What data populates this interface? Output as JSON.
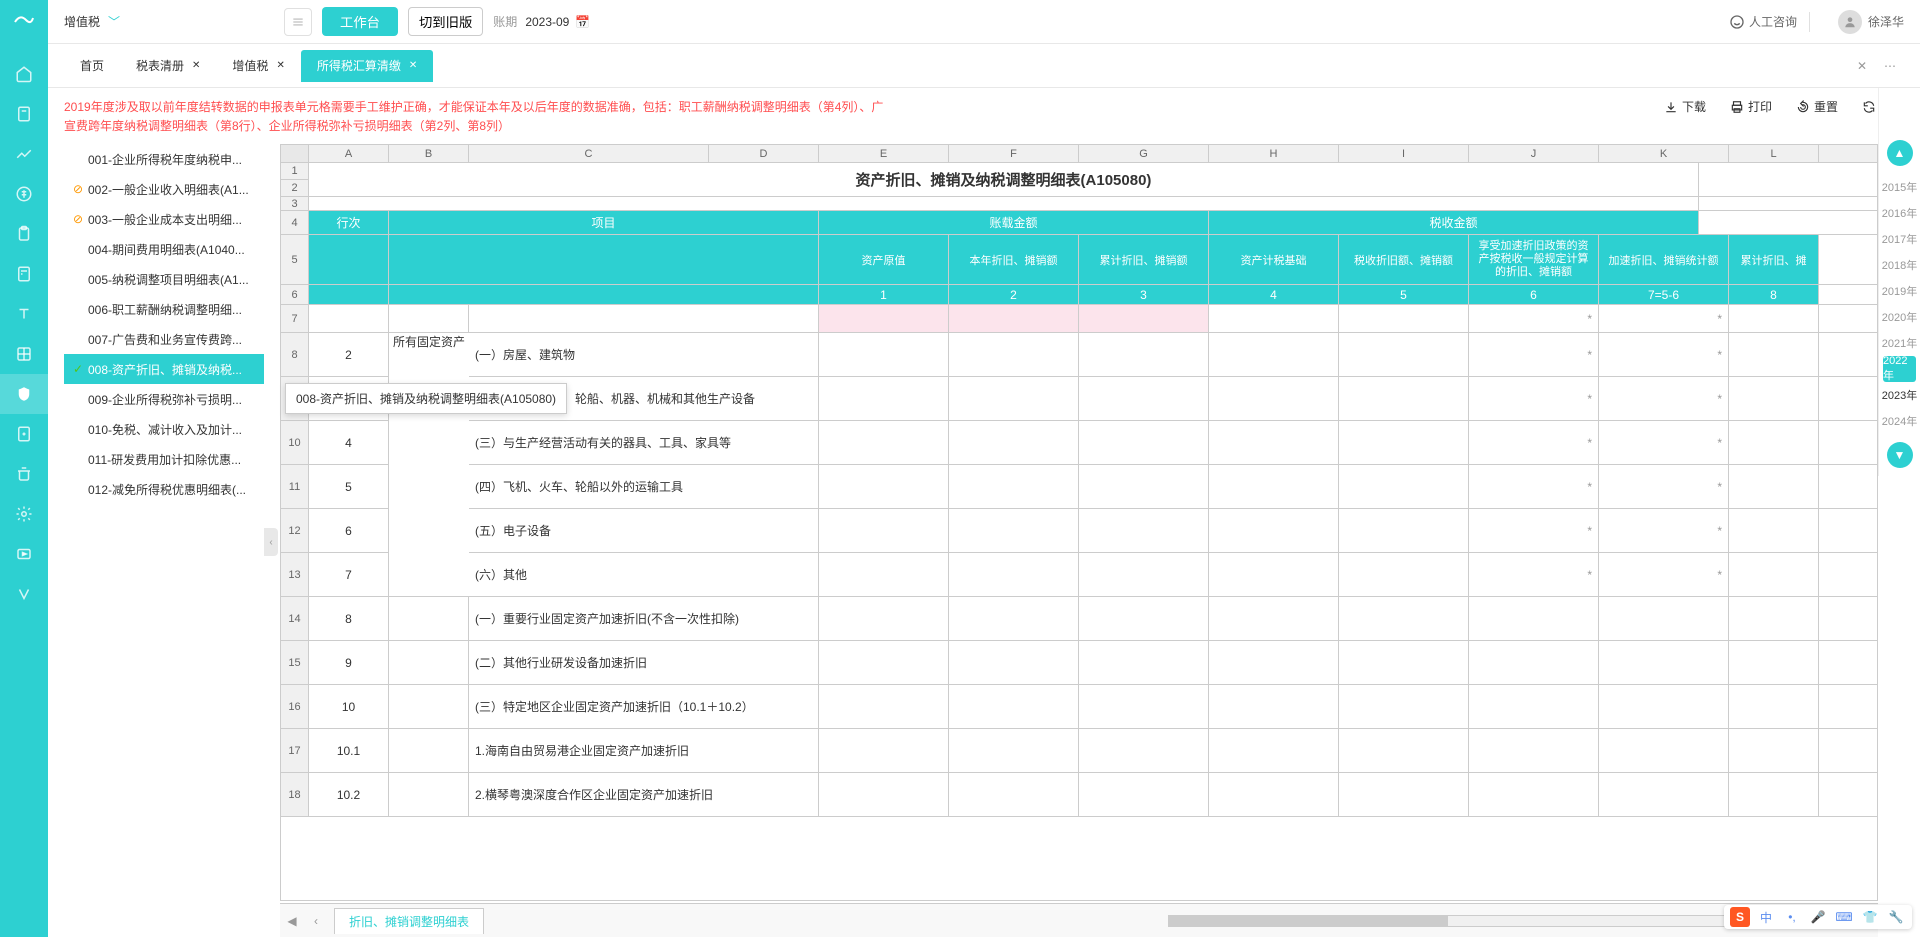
{
  "header": {
    "dropdown_label": "增值税",
    "workspace_btn": "工作台",
    "switch_old_btn": "切到旧版",
    "period_label": "账期",
    "period_value": "2023-09",
    "support_label": "人工咨询",
    "user_name": "徐泽华"
  },
  "tabs": {
    "items": [
      {
        "label": "首页",
        "closable": false,
        "active": false
      },
      {
        "label": "税表清册",
        "closable": true,
        "active": false
      },
      {
        "label": "增值税",
        "closable": true,
        "active": false
      },
      {
        "label": "所得税汇算清缴",
        "closable": true,
        "active": true
      }
    ]
  },
  "notice": "2019年度涉及取以前年度结转数据的申报表单元格需要手工维护正确，才能保证本年及以后年度的数据准确，包括：职工薪酬纳税调整明细表（第4列）、广宣费跨年度纳税调整明细表（第8行）、企业所得税弥补亏损明细表（第2列、第8列）",
  "toolbar": {
    "download": "下载",
    "print": "打印",
    "reset": "重置",
    "refresh": "刷新"
  },
  "form_list": [
    {
      "label": "001-企业所得税年度纳税申...",
      "status": ""
    },
    {
      "label": "002-一般企业收入明细表(A1...",
      "status": "warn"
    },
    {
      "label": "003-一般企业成本支出明细...",
      "status": "warn"
    },
    {
      "label": "004-期间费用明细表(A1040...",
      "status": ""
    },
    {
      "label": "005-纳税调整项目明细表(A1...",
      "status": ""
    },
    {
      "label": "006-职工薪酬纳税调整明细...",
      "status": ""
    },
    {
      "label": "007-广告费和业务宣传费跨...",
      "status": ""
    },
    {
      "label": "008-资产折旧、摊销及纳税...",
      "status": "ok",
      "active": true
    },
    {
      "label": "009-企业所得税弥补亏损明...",
      "status": ""
    },
    {
      "label": "010-免税、减计收入及加计...",
      "status": ""
    },
    {
      "label": "011-研发费用加计扣除优惠...",
      "status": ""
    },
    {
      "label": "012-减免所得税优惠明细表(...",
      "status": ""
    }
  ],
  "tooltip": "008-资产折旧、摊销及纳税调整明细表(A105080)",
  "sheet": {
    "columns": [
      "A",
      "B",
      "C",
      "D",
      "E",
      "F",
      "G",
      "H",
      "I",
      "J",
      "K",
      "L"
    ],
    "title": "资产折旧、摊销及纳税调整明细表(A105080)",
    "header_row1": {
      "line": "行次",
      "project": "项目",
      "book": "账载金额",
      "tax": "税收金额"
    },
    "header_row2": {
      "e": "资产原值",
      "f": "本年折旧、摊销额",
      "g": "累计折旧、摊销额",
      "h": "资产计税基础",
      "i": "税收折旧额、摊销额",
      "j": "享受加速折旧政策的资产按税收一般规定计算的折旧、摊销额",
      "k": "加速折旧、摊销统计额",
      "l": "累计折旧、摊"
    },
    "header_row3": {
      "e": "1",
      "f": "2",
      "g": "3",
      "h": "4",
      "i": "5",
      "j": "6",
      "k": "7=5-6",
      "l": "8"
    },
    "data_rows": [
      {
        "n": "8",
        "a": "2",
        "c": "(一）房屋、建筑物"
      },
      {
        "n": "9",
        "a": "3",
        "c": "(二）飞机、火车、轮船、机器、机械和其他生产设备"
      },
      {
        "n": "10",
        "a": "4",
        "c": "(三）与生产经营活动有关的器具、工具、家具等"
      },
      {
        "n": "11",
        "a": "5",
        "c": "(四）飞机、火车、轮船以外的运输工具"
      },
      {
        "n": "12",
        "a": "6",
        "c": "(五）电子设备"
      },
      {
        "n": "13",
        "a": "7",
        "c": "(六）其他"
      },
      {
        "n": "14",
        "a": "8",
        "c": "(一）重要行业固定资产加速折旧(不含一次性扣除)"
      },
      {
        "n": "15",
        "a": "9",
        "c": "(二）其他行业研发设备加速折旧"
      },
      {
        "n": "16",
        "a": "10",
        "c": "(三）特定地区企业固定资产加速折旧（10.1＋10.2）"
      },
      {
        "n": "17",
        "a": "10.1",
        "c": "1.海南自由贸易港企业固定资产加速折旧"
      },
      {
        "n": "18",
        "a": "10.2",
        "c": "2.横琴粤澳深度合作区企业固定资产加速折旧"
      }
    ],
    "category_label": "所有固定资产",
    "bottom_tab": "折旧、摊销调整明细表"
  },
  "years": {
    "list": [
      "2015年",
      "2016年",
      "2017年",
      "2018年",
      "2019年",
      "2020年",
      "2021年",
      "2022年",
      "2023年",
      "2024年"
    ],
    "active": "2022年",
    "current": "2023年"
  },
  "ime": [
    "S",
    "中",
    "•,",
    "🎤",
    "⌨",
    "👕",
    "🔧"
  ],
  "colors": {
    "teal": "#2dd0d1",
    "red": "#ff4d4f",
    "pink": "#fce4ec"
  }
}
